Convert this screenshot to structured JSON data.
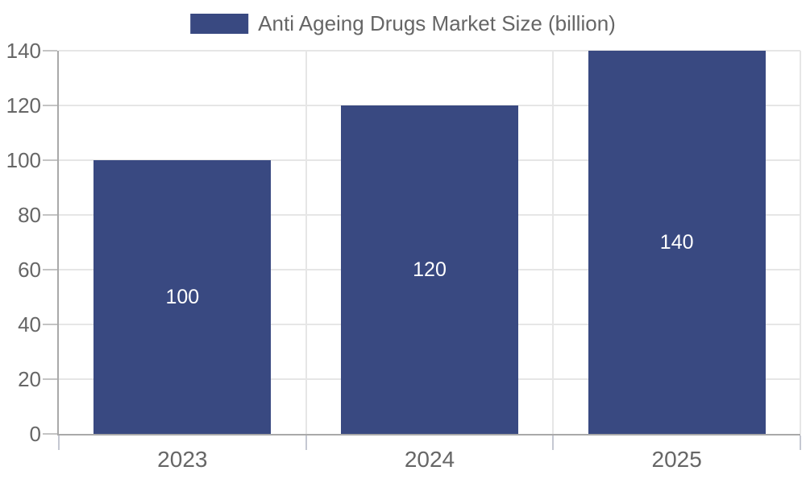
{
  "chart_data": {
    "type": "bar",
    "title": "Anti Ageing Drugs Market Size (billion)",
    "legend": {
      "label": "Anti Ageing Drugs Market Size (billion)",
      "position": "top-center"
    },
    "categories": [
      "2023",
      "2024",
      "2025"
    ],
    "series": [
      {
        "name": "Anti Ageing Drugs Market Size (billion)",
        "values": [
          100,
          120,
          140
        ]
      }
    ],
    "value_labels": [
      "100",
      "120",
      "140"
    ],
    "xlabel": "",
    "ylabel": "",
    "ylim": [
      0,
      140
    ],
    "yticks": [
      0,
      20,
      40,
      60,
      80,
      100,
      120,
      140
    ],
    "grid": true,
    "legend_position": "top-center",
    "colors": {
      "bar": "#394981",
      "bar_label_text": "#ffffff",
      "axis_text": "#666666",
      "grid_line": "#e6e6e6",
      "axis_line": "#a9a9a9",
      "tick_mark": "#c4c4c4",
      "boundary_tick": "#c5c8d2",
      "background": "#ffffff"
    }
  }
}
